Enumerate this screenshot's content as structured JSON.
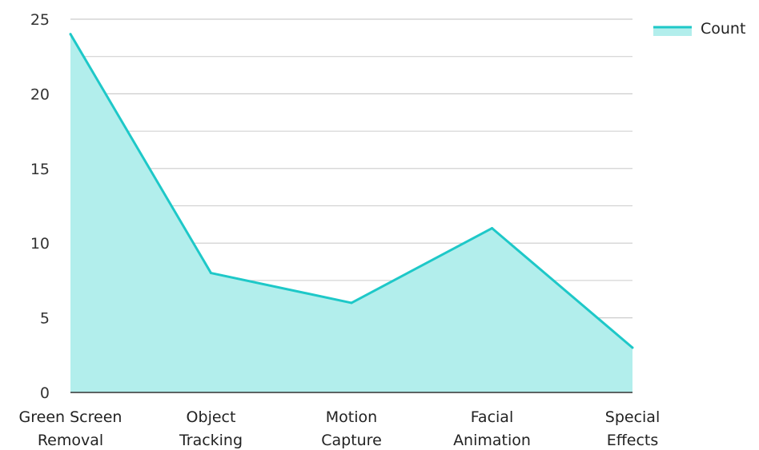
{
  "chart_data": {
    "type": "area",
    "categories": [
      [
        "Green Screen",
        "Removal"
      ],
      [
        "Object",
        "Tracking"
      ],
      [
        "Motion",
        "Capture"
      ],
      [
        "Facial",
        "Animation"
      ],
      [
        "Special",
        "Effects"
      ]
    ],
    "series": [
      {
        "name": "Count",
        "values": [
          24,
          8,
          6,
          11,
          3
        ],
        "line_color": "#1ec8c8",
        "fill_color": "#b2eeec"
      }
    ],
    "ylim": [
      0,
      25
    ],
    "y_ticks": [
      0,
      5,
      10,
      15,
      20,
      25
    ],
    "grid": true,
    "grid_color": "#cccccc",
    "legend_position": "top-right"
  }
}
